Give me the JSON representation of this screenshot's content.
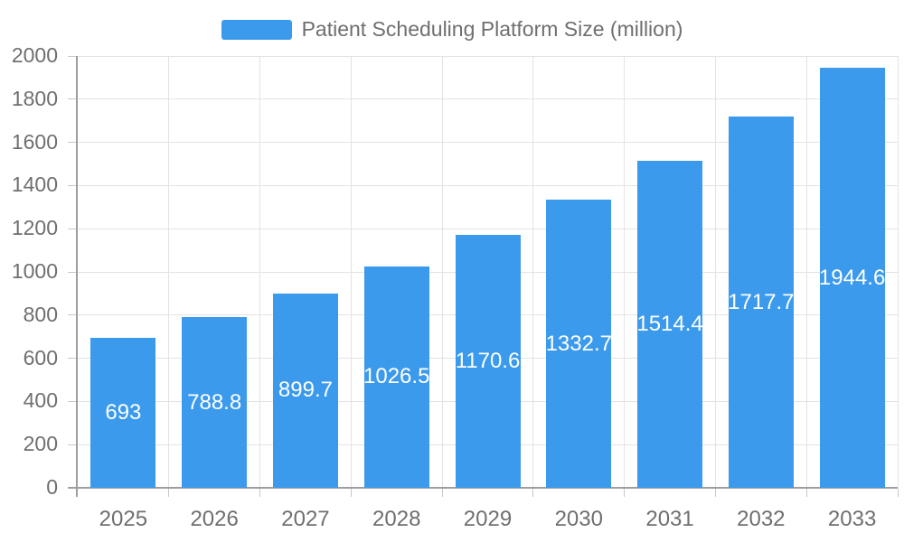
{
  "chart_data": {
    "type": "bar",
    "title": "Patient Scheduling Platform Size (million)",
    "categories": [
      "2025",
      "2026",
      "2027",
      "2028",
      "2029",
      "2030",
      "2031",
      "2032",
      "2033"
    ],
    "series": [
      {
        "name": "Patient Scheduling Platform Size (million)",
        "values": [
          693,
          788.8,
          899.7,
          1026.5,
          1170.6,
          1332.7,
          1514.4,
          1717.7,
          1944.6
        ],
        "value_labels": [
          "693",
          "788.8",
          "899.7",
          "1026.5",
          "1170.6",
          "1332.7",
          "1514.4",
          "1717.7",
          "1944.6"
        ],
        "color": "#3C9AEC"
      }
    ],
    "xlabel": "",
    "ylabel": "",
    "ylim": [
      0,
      2000
    ],
    "yticks": [
      0,
      200,
      400,
      600,
      800,
      1000,
      1200,
      1400,
      1600,
      1800,
      2000
    ],
    "grid": true,
    "legend_position": "top",
    "value_label_position": "center"
  },
  "legend": {
    "label": "Patient Scheduling Platform Size (million)"
  },
  "colors": {
    "bar": "#3C9AEC",
    "value_label_text": "#ffffff",
    "axis_line": "#9e9e9e",
    "grid_line": "#e3e3e3",
    "tick_mark": "#c8c8c8",
    "tick_text": "#6f6f6f",
    "legend_text": "#6f6f6f",
    "background": "#ffffff"
  }
}
